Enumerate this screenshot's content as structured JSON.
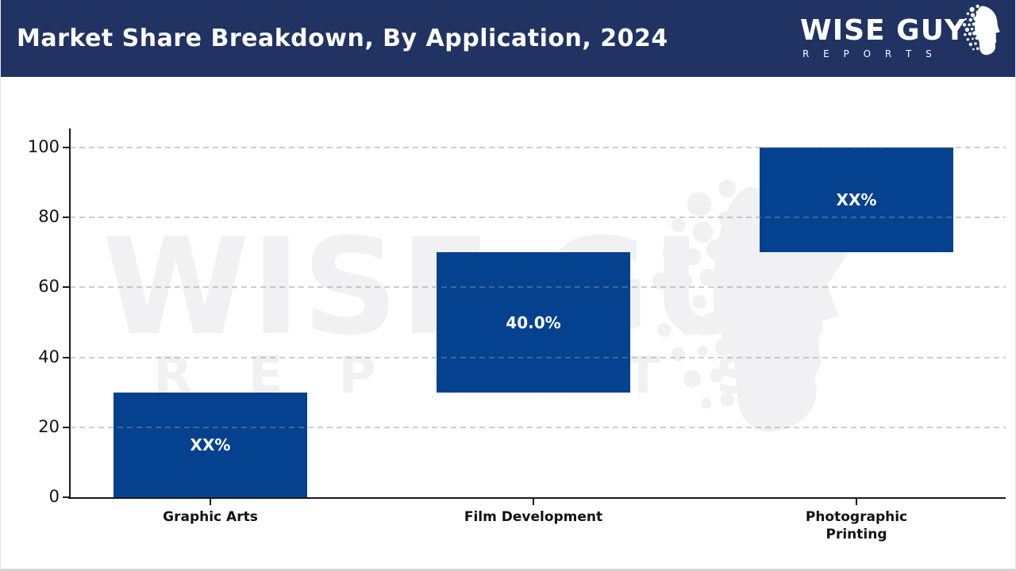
{
  "header": {
    "title": "Market Share Breakdown, By Application, 2024",
    "logo": {
      "line1": "WISE GUY",
      "line2": "R E P O R T S"
    }
  },
  "watermark": {
    "line1": "WISE GUY",
    "line2": "R E P O R T S"
  },
  "colors": {
    "header_bg": "#203362",
    "bar": "#04418f",
    "bar_label": "#ffffff",
    "axis": "#1a1a1a",
    "watermark": "#f1f1f4"
  },
  "chart_data": {
    "type": "bar",
    "subtype": "floating-range-bars",
    "title": "Market Share Breakdown, By Application, 2024",
    "categories": [
      "Graphic Arts",
      "Film Development",
      "Photographic\nPrinting"
    ],
    "bars": [
      {
        "category": "Graphic Arts",
        "from": 0,
        "to": 30,
        "label": "XX%"
      },
      {
        "category": "Film Development",
        "from": 30,
        "to": 70,
        "label": "40.0%"
      },
      {
        "category": "Photographic Printing",
        "from": 70,
        "to": 100,
        "label": "XX%"
      }
    ],
    "ylim": [
      0,
      100
    ],
    "yticks": [
      0,
      20,
      40,
      60,
      80,
      100
    ],
    "grid": "horizontal-dashed",
    "legend": "none"
  }
}
